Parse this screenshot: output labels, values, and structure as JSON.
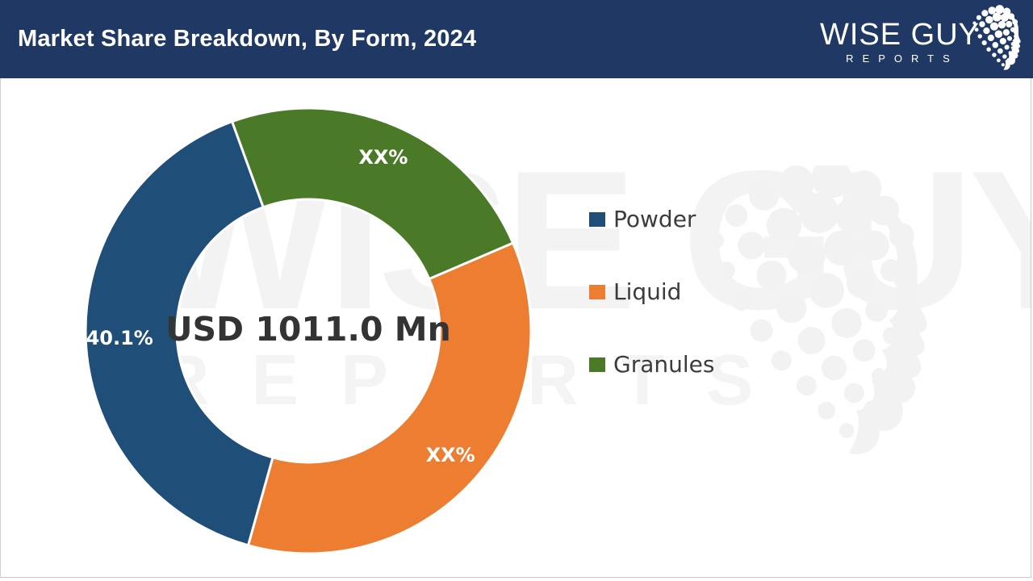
{
  "header": {
    "title": "Market Share Breakdown, By Form, 2024",
    "logo": {
      "line1": "WISE GUY",
      "line2": "REPORTS"
    }
  },
  "watermark": {
    "line1": "WISE GUY",
    "line2": "REPORTS"
  },
  "chart_data": {
    "type": "pie",
    "subtype": "donut",
    "title": "Market Share Breakdown, By Form, 2024",
    "center_label": "USD 1011.0 Mn",
    "start_angle_deg": 110,
    "direction": "counterclockwise",
    "inner_radius_ratio": 0.59,
    "legend_position": "right",
    "slices": [
      {
        "name": "Powder",
        "percent": 40.1,
        "label": "40.1%",
        "color": "#1f4e79"
      },
      {
        "name": "Liquid",
        "percent": 35.8,
        "label": "XX%",
        "color": "#ed7d31"
      },
      {
        "name": "Granules",
        "percent": 24.1,
        "label": "XX%",
        "color": "#4a7a28"
      }
    ]
  },
  "colors": {
    "header_bg": "#1f3864",
    "body_bg": "#ffffff",
    "watermark": "#f2f2f2",
    "center_label": "#333333",
    "legend_text": "#3c3c3c",
    "slice_separator": "#ffffff"
  }
}
